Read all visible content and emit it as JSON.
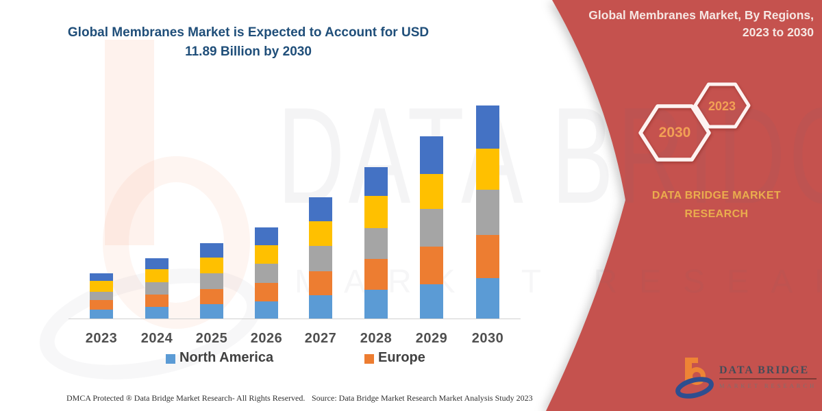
{
  "chart": {
    "title": "Global Membranes Market is Expected to Account for USD 11.89 Billion by 2030",
    "legend": [
      {
        "label": "North America",
        "color": "#5B9BD5"
      },
      {
        "label": "Europe",
        "color": "#ED7D31"
      }
    ]
  },
  "chart_data": {
    "type": "bar",
    "stacked": true,
    "title": "Global Membranes Market is Expected to Account for USD 11.89 Billion by 2030",
    "unit": "USD Billion",
    "categories": [
      "2023",
      "2024",
      "2025",
      "2026",
      "2027",
      "2028",
      "2029",
      "2030"
    ],
    "totals": [
      2.52,
      3.36,
      4.21,
      5.08,
      6.77,
      8.45,
      10.17,
      11.89
    ],
    "series": [
      {
        "name": "North America",
        "color": "#5B9BD5",
        "values": [
          0.5,
          0.65,
          0.8,
          0.97,
          1.31,
          1.61,
          1.92,
          2.26
        ]
      },
      {
        "name": "Europe",
        "color": "#ED7D31",
        "values": [
          0.52,
          0.68,
          0.85,
          1.02,
          1.33,
          1.7,
          2.11,
          2.42
        ]
      },
      {
        "name": "",
        "color": "#A5A5A5",
        "values": [
          0.47,
          0.7,
          0.88,
          1.06,
          1.4,
          1.75,
          2.08,
          2.51
        ]
      },
      {
        "name": "",
        "color": "#FFC000",
        "values": [
          0.61,
          0.72,
          0.86,
          1.05,
          1.39,
          1.77,
          1.96,
          2.3
        ]
      },
      {
        "name": "",
        "color": "#4472C4",
        "values": [
          0.42,
          0.61,
          0.82,
          0.98,
          1.34,
          1.62,
          2.1,
          2.4
        ]
      }
    ],
    "xlabel": "",
    "ylabel": "",
    "grid": false,
    "legend_position": "bottom",
    "legend_visible_entries": [
      "North America",
      "Europe"
    ]
  },
  "sidebar": {
    "title": "Global Membranes Market, By Regions, 2023 to 2030",
    "hexagon_big_label": "2030",
    "hexagon_small_label": "2023",
    "brand_text": "DATA BRIDGE MARKET RESEARCH",
    "background_color": "#C5524E",
    "accent_text_color": "#EAAD4D",
    "hex_label_color": "#F2A055"
  },
  "logo": {
    "name": "DATA BRIDGE",
    "subtitle": "MARKET RESEARCH"
  },
  "watermark": {
    "line1": "DATA BRIDGE",
    "line2": "MARKET RESEARCH"
  },
  "footer": {
    "dmca": "DMCA Protected ® Data Bridge Market Research-  All Rights Reserved.",
    "source": "Source: Data Bridge Market Research  Market Analysis Study 2023"
  },
  "colors": {
    "title_blue": "#1F4E79",
    "axis_line": "#CFCFCF",
    "xlabel_gray": "#4F4F4F"
  }
}
